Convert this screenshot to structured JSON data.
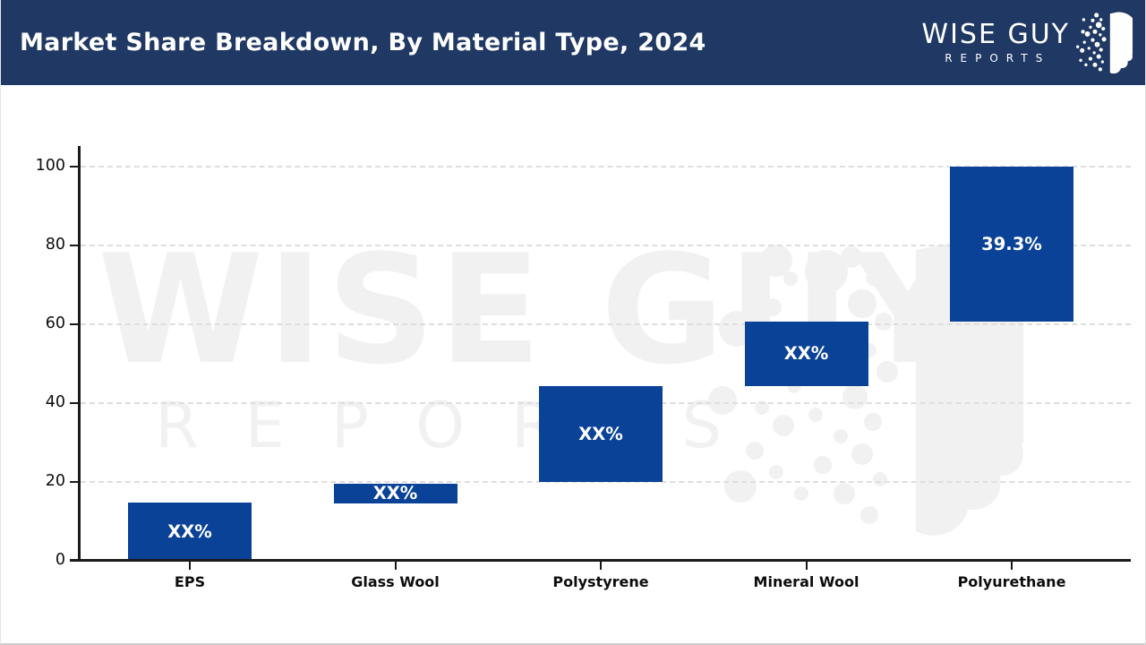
{
  "header": {
    "title": "Market Share Breakdown, By Material Type, 2024",
    "logo": {
      "line1": "WISE GUY",
      "line2": "REPORTS"
    }
  },
  "watermark": {
    "line1": "WISE GUY",
    "line2": "REPORTS"
  },
  "colors": {
    "header_bg": "#1f3864",
    "bar": "#0a4297",
    "bar_label": "#ffffff",
    "gridline": "#dedede",
    "axis": "#1a1a1a",
    "watermark": "#f1f1f1"
  },
  "chart_data": {
    "type": "bar",
    "subtype": "waterfall",
    "title": "Market Share Breakdown, By Material Type, 2024",
    "categories": [
      "EPS",
      "Glass Wool",
      "Polystyrene",
      "Mineral Wool",
      "Polyurethane"
    ],
    "segments": [
      {
        "category": "EPS",
        "start": 0,
        "end": 14.8,
        "label": "XX%"
      },
      {
        "category": "Glass Wool",
        "start": 14.6,
        "end": 19.6,
        "label": "XX%"
      },
      {
        "category": "Polystyrene",
        "start": 19.9,
        "end": 44.3,
        "label": "XX%"
      },
      {
        "category": "Mineral Wool",
        "start": 44.3,
        "end": 60.7,
        "label": "XX%"
      },
      {
        "category": "Polyurethane",
        "start": 60.7,
        "end": 100,
        "label": "39.3%"
      }
    ],
    "yticks": [
      0,
      20,
      40,
      60,
      80,
      100
    ],
    "ylim": [
      0,
      105
    ],
    "xlabel": "",
    "ylabel": "",
    "grid": "dashed-horizontal",
    "legend": "none"
  }
}
